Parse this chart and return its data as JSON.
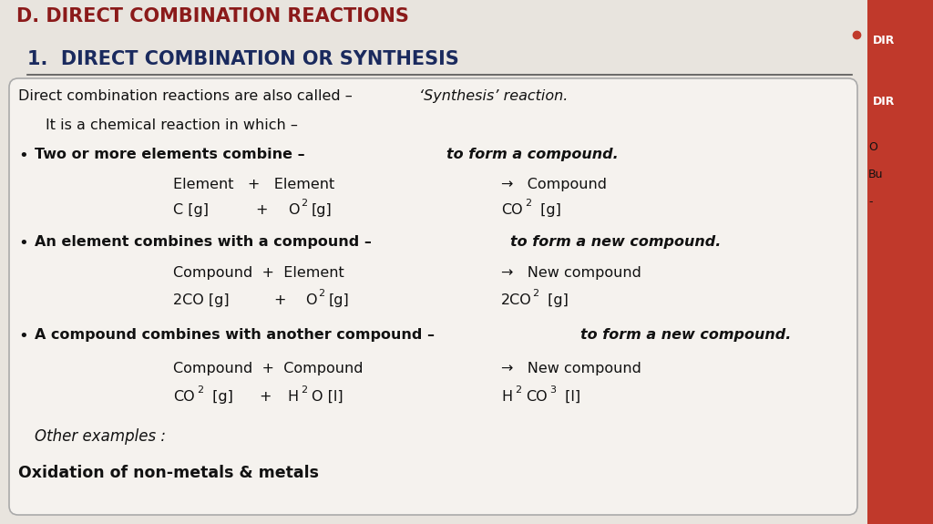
{
  "bg_color": "#e8e4de",
  "main_title": "D. DIRECT COMBINATION REACTIONS",
  "main_title_color": "#8b1a1a",
  "section_title": "1.  DIRECT COMBINATION OR SYNTHESIS",
  "section_title_color": "#1a2a5e",
  "box_bg": "#f0ede8",
  "text_color": "#111111",
  "right_panel_color": "#c0392b",
  "right_panel_texts": [
    "DIR",
    "DIR"
  ],
  "right_side_texts": [
    "O",
    "Bu",
    "-"
  ],
  "bullet_dot_color": "#111111"
}
